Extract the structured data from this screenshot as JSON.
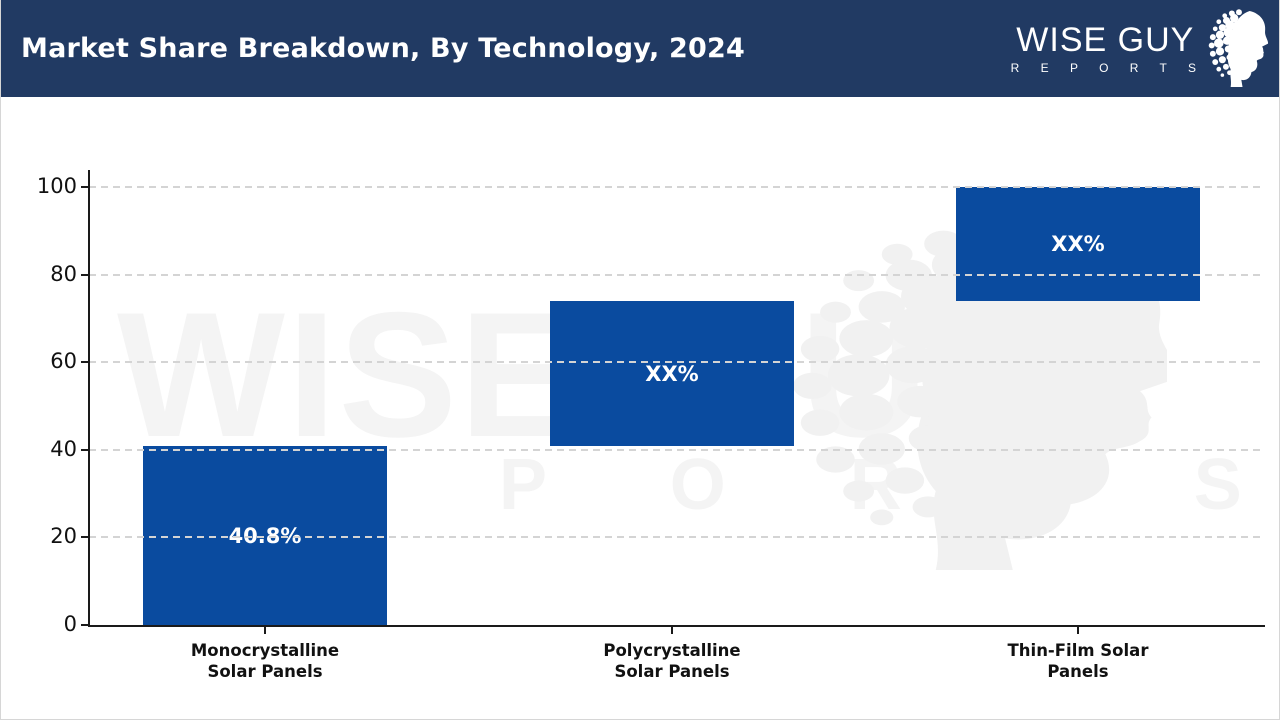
{
  "header": {
    "title": "Market Share Breakdown, By Technology, 2024",
    "logo": {
      "line1": "WISE GUY",
      "line2": "R E P O R T S"
    },
    "bg_color": "#213A63"
  },
  "watermark": {
    "line1": "WISE GUY",
    "line2": "R E P O R T S"
  },
  "chart_data": {
    "type": "bar",
    "subtype": "floating-waterfall",
    "title": "Market Share Breakdown, By Technology, 2024",
    "categories": [
      "Monocrystalline Solar Panels",
      "Polycrystalline Solar Panels",
      "Thin-Film Solar Panels"
    ],
    "category_lines": [
      [
        "Monocrystalline",
        "Solar Panels"
      ],
      [
        "Polycrystalline",
        "Solar Panels"
      ],
      [
        "Thin-Film Solar",
        "Panels"
      ]
    ],
    "segments": [
      {
        "start": 0,
        "end": 40.8,
        "label": "40.8%"
      },
      {
        "start": 40.8,
        "end": 74,
        "label": "XX%"
      },
      {
        "start": 74,
        "end": 100,
        "label": "XX%"
      }
    ],
    "y_ticks": [
      0,
      20,
      40,
      60,
      80,
      100
    ],
    "ylim": [
      0,
      100
    ],
    "xlabel": "",
    "ylabel": "",
    "grid": "horizontal-dashed",
    "gridline_color": "#d4d4d4",
    "bar_color": "#0A4B9F",
    "bar_label_color": "#ffffff",
    "axis_color": "#1a1a1a"
  }
}
